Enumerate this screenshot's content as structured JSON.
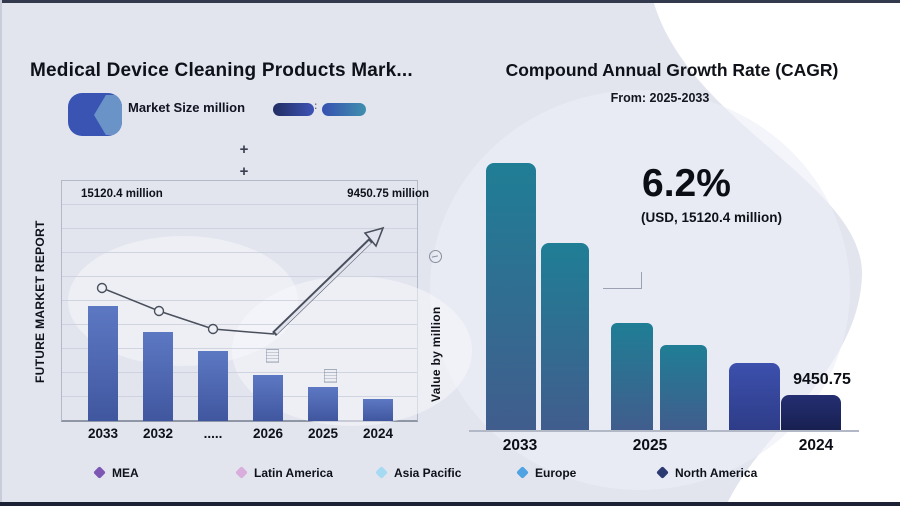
{
  "left_panel": {
    "title": "Medical Device Cleaning Products Mark...",
    "market_size_label": "Market Size million",
    "top_left_value": "15120.4 million",
    "top_right_value": "9450.75 million",
    "y_axis_label_left": "FUTURE MARKET REPORT",
    "y_axis_label_right": "Value by million"
  },
  "right_panel": {
    "title": "Compound Annual Growth Rate (CAGR)",
    "subtitle": "From: 2025-2033",
    "cagr_value": "6.2%",
    "cagr_note": "(USD, 15120.4 million)",
    "bar_value_label": "9450.75"
  },
  "icons": {
    "plus": "+",
    "colon": ":"
  },
  "legend": {
    "items": [
      {
        "label": "MEA",
        "color": "#7e57b5"
      },
      {
        "label": "Latin America",
        "color": "#d9addc"
      },
      {
        "label": "Asia Pacific",
        "color": "#a6d9f2"
      },
      {
        "label": "Europe",
        "color": "#4fa3e3"
      },
      {
        "label": "North America",
        "color": "#2c3a72"
      }
    ]
  },
  "colors": {
    "background": "#e2e5ee",
    "left_bar_top": "#5d78c3",
    "left_bar_bottom": "#40579f",
    "right_bar_teal_top": "#1f7e95",
    "right_bar_teal_bottom": "#415d8d",
    "right_bar_navy_top": "#3c50ad",
    "right_bar_navy_dark": "#182051"
  },
  "chart_data": [
    {
      "type": "bar",
      "title": "Medical Device Cleaning Products Market - Market Size million",
      "categories": [
        "2033",
        "2032",
        ".....",
        "2026",
        "2025",
        "2024"
      ],
      "values": [
        48,
        37,
        29,
        19,
        14,
        9
      ],
      "value_units": "relative height percent of plot area (no numeric axis shown)",
      "annotations": [
        "15120.4 million",
        "9450.75 million"
      ],
      "xlabel": "",
      "ylabel": "Value by million",
      "grid": true,
      "legend_position": "none",
      "overlay": "trend line with circular markers descending from 2033 to 2026, then double-outline arrow rising to top-right above 2024"
    },
    {
      "type": "bar",
      "title": "Compound Annual Growth Rate (CAGR)",
      "subtitle": "From: 2025-2033",
      "categories": [
        "2033",
        "2025",
        "2024"
      ],
      "series": [
        {
          "name": "bar-left",
          "values": [
            100,
            40,
            25
          ]
        },
        {
          "name": "bar-right",
          "values": [
            70,
            32,
            13
          ]
        }
      ],
      "value_units": "relative height percent (no numeric axis shown)",
      "value_labels": {
        "2024": "9450.75"
      },
      "cagr": "6.2%",
      "cagr_note": "(USD, 15120.4 million)",
      "grid": false,
      "legend_position": "bottom"
    }
  ]
}
